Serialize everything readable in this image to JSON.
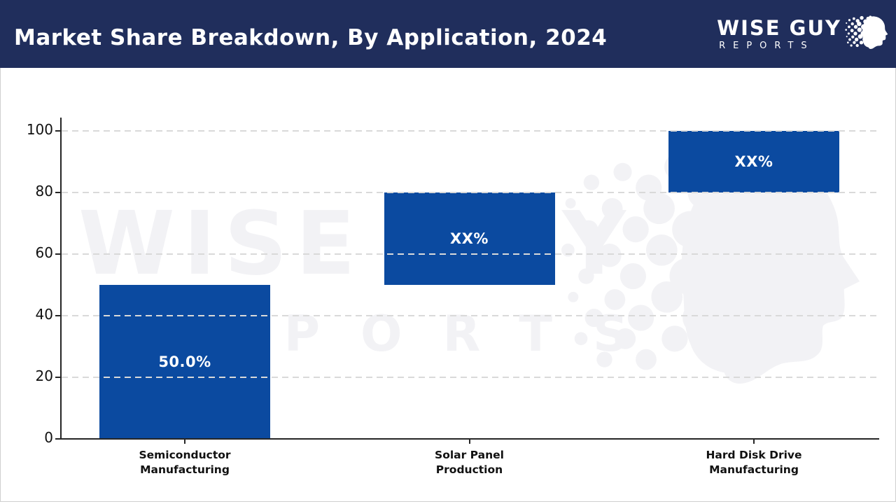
{
  "header": {
    "title": "Market Share Breakdown, By Application, 2024",
    "logo": {
      "wordmark": "WISE GUY",
      "subtext": "REPORTS"
    }
  },
  "watermark": {
    "line1": "WISE GUY",
    "line2": "REPORTS"
  },
  "chart_data": {
    "type": "bar",
    "subtype": "floating-waterfall",
    "title": "Market Share Breakdown, By Application, 2024",
    "categories": [
      "Semiconductor Manufacturing",
      "Solar Panel Production",
      "Hard Disk Drive Manufacturing"
    ],
    "bars": [
      {
        "label_line1": "Semiconductor",
        "label_line2": "Manufacturing",
        "start": 0,
        "end": 50,
        "value_label": "50.0%"
      },
      {
        "label_line1": "Solar Panel",
        "label_line2": "Production",
        "start": 50,
        "end": 80,
        "value_label": "XX%"
      },
      {
        "label_line1": "Hard Disk Drive",
        "label_line2": "Manufacturing",
        "start": 80,
        "end": 100,
        "value_label": "XX%"
      }
    ],
    "y_ticks": [
      0,
      20,
      40,
      60,
      80,
      100
    ],
    "ylim": [
      0,
      105
    ],
    "grid": "horizontal-dashed",
    "legend": "none",
    "bar_color": "#0b4aa0"
  },
  "colors": {
    "header_bg": "#202e5c",
    "bar_fill": "#0b4aa0",
    "grid_line": "#d9d9d9",
    "axis_line": "#262626",
    "text_dark": "#111111",
    "watermark": "#f2f2f5"
  }
}
